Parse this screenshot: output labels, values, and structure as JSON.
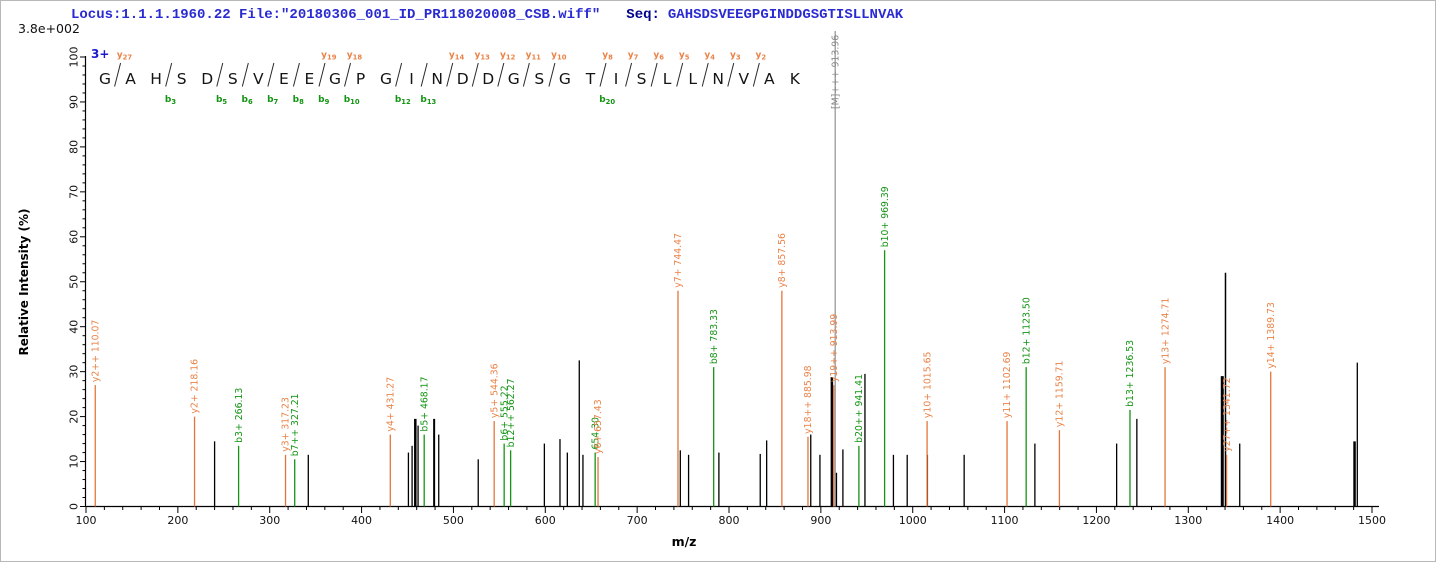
{
  "header": {
    "locus_file": "Locus:1.1.1.1960.22 File:\"20180306_001_ID_PR118020008_CSB.wiff\"",
    "seq_label": "Seq:",
    "sequence": "GAHSDSVEEGPGINDDGSGTISLLNVAK"
  },
  "scale_label": "3.8e+002",
  "colors": {
    "y_ion": "#E2763A",
    "y_ion_text": "#EA8348",
    "b_ion": "#149414",
    "unassigned": "#000000",
    "precursor_line": "#8F8F8F",
    "precursor_text": "#8A8A8A",
    "header_blue": "#2A2AD2",
    "seq_navy": "#00008B",
    "charge_blue": "#1C1CCD",
    "axis": "#000000"
  },
  "precursor": {
    "charge": "3+",
    "label": "[M]+++ 913.96",
    "mz": 913.96
  },
  "sequence_annotation": {
    "residues": [
      "G",
      "A",
      "H",
      "S",
      "D",
      "S",
      "V",
      "E",
      "E",
      "G",
      "P",
      "G",
      "I",
      "N",
      "D",
      "D",
      "G",
      "S",
      "G",
      "T",
      "I",
      "S",
      "L",
      "L",
      "N",
      "V",
      "A",
      "K"
    ],
    "y_ions": [
      {
        "num": 27,
        "gap": 0
      },
      {
        "num": 19,
        "gap": 8
      },
      {
        "num": 18,
        "gap": 9
      },
      {
        "num": 14,
        "gap": 13
      },
      {
        "num": 13,
        "gap": 14
      },
      {
        "num": 12,
        "gap": 15
      },
      {
        "num": 11,
        "gap": 16
      },
      {
        "num": 10,
        "gap": 17
      },
      {
        "num": 8,
        "gap": 19
      },
      {
        "num": 7,
        "gap": 20
      },
      {
        "num": 6,
        "gap": 21
      },
      {
        "num": 5,
        "gap": 22
      },
      {
        "num": 4,
        "gap": 23
      },
      {
        "num": 3,
        "gap": 24
      },
      {
        "num": 2,
        "gap": 25
      }
    ],
    "b_ions": [
      {
        "num": 3,
        "gap": 2
      },
      {
        "num": 5,
        "gap": 4
      },
      {
        "num": 6,
        "gap": 5
      },
      {
        "num": 7,
        "gap": 6
      },
      {
        "num": 8,
        "gap": 7
      },
      {
        "num": 9,
        "gap": 8
      },
      {
        "num": 10,
        "gap": 9
      },
      {
        "num": 12,
        "gap": 11
      },
      {
        "num": 13,
        "gap": 12
      },
      {
        "num": 20,
        "gap": 19
      }
    ]
  },
  "chart_data": {
    "type": "bar",
    "subtype": "ms2-fragment-spectrum",
    "title": "",
    "xlabel": "m/z",
    "ylabel": "Relative  Intensity (%)",
    "xlim": [
      100,
      1500
    ],
    "ylim": [
      0,
      100
    ],
    "x_major_tick": 100,
    "x_minor_tick": 20,
    "y_major_tick": 10,
    "y_minor_tick": 2,
    "intensity_scale_label": "3.8e+002",
    "series": [
      {
        "name": "y-ions",
        "color": "#E2763A",
        "points": [
          {
            "label": "y2++ 110.07",
            "mz": 110.07,
            "intensity": 27
          },
          {
            "label": "y2+ 218.16",
            "mz": 218.16,
            "intensity": 20
          },
          {
            "label": "y3+ 317.23",
            "mz": 317.23,
            "intensity": 11.5
          },
          {
            "label": "y4+ 431.27",
            "mz": 431.27,
            "intensity": 16
          },
          {
            "label": "y5+ 544.36",
            "mz": 544.36,
            "intensity": 19
          },
          {
            "label": "y6+ 657.43",
            "mz": 657.43,
            "intensity": 11
          },
          {
            "label": "y7+ 744.47",
            "mz": 744.47,
            "intensity": 48
          },
          {
            "label": "y8+ 857.56",
            "mz": 857.56,
            "intensity": 48
          },
          {
            "label": "y18++ 885.98",
            "mz": 885.98,
            "intensity": 15.5
          },
          {
            "label": "y19++ 913.99",
            "mz": 913.99,
            "intensity": 27
          },
          {
            "label": "y10+ 1015.65",
            "mz": 1015.65,
            "intensity": 19
          },
          {
            "label": "y11+ 1102.69",
            "mz": 1102.69,
            "intensity": 19
          },
          {
            "label": "y12+ 1159.71",
            "mz": 1159.71,
            "intensity": 17
          },
          {
            "label": "y13+ 1274.71",
            "mz": 1274.71,
            "intensity": 31
          },
          {
            "label": "y27++ 1341.72",
            "mz": 1341.72,
            "intensity": 11.5
          },
          {
            "label": "y14+ 1389.73",
            "mz": 1389.73,
            "intensity": 30
          }
        ]
      },
      {
        "name": "b-ions",
        "color": "#149414",
        "points": [
          {
            "label": "b3+ 266.13",
            "mz": 266.13,
            "intensity": 13.5
          },
          {
            "label": "b7++ 327.21",
            "mz": 327.21,
            "intensity": 10.5
          },
          {
            "label": "b5+ 468.17",
            "mz": 468.17,
            "intensity": 16
          },
          {
            "label": "b6+ 555.22",
            "mz": 555.22,
            "intensity": 14
          },
          {
            "label": "b12++ 562.27",
            "mz": 562.27,
            "intensity": 12.5
          },
          {
            "label": "654.30",
            "mz": 654.3,
            "intensity": 12
          },
          {
            "label": "b8+ 783.33",
            "mz": 783.33,
            "intensity": 31
          },
          {
            "label": "b20++ 941.41",
            "mz": 941.41,
            "intensity": 13.5
          },
          {
            "label": "b10+ 969.39",
            "mz": 969.39,
            "intensity": 57
          },
          {
            "label": "b12+ 1123.50",
            "mz": 1123.5,
            "intensity": 31
          },
          {
            "label": "b13+ 1236.53",
            "mz": 1236.53,
            "intensity": 21.5
          }
        ]
      },
      {
        "name": "unassigned",
        "color": "#000000",
        "points": [
          {
            "mz": 240,
            "intensity": 14.5
          },
          {
            "mz": 342,
            "intensity": 11.5
          },
          {
            "mz": 451,
            "intensity": 12
          },
          {
            "mz": 455,
            "intensity": 13.5
          },
          {
            "mz": 458.5,
            "intensity": 19.5,
            "w": 2.5
          },
          {
            "mz": 461.5,
            "intensity": 18
          },
          {
            "mz": 479,
            "intensity": 19.5,
            "w": 2
          },
          {
            "mz": 484,
            "intensity": 16
          },
          {
            "mz": 527,
            "intensity": 10.5
          },
          {
            "mz": 599,
            "intensity": 14
          },
          {
            "mz": 616,
            "intensity": 15
          },
          {
            "mz": 624,
            "intensity": 12
          },
          {
            "mz": 637,
            "intensity": 32.5
          },
          {
            "mz": 641,
            "intensity": 11.5
          },
          {
            "mz": 747,
            "intensity": 12.5
          },
          {
            "mz": 756,
            "intensity": 11.5
          },
          {
            "mz": 789,
            "intensity": 12
          },
          {
            "mz": 834,
            "intensity": 11.7
          },
          {
            "mz": 841,
            "intensity": 14.7
          },
          {
            "mz": 889,
            "intensity": 16
          },
          {
            "mz": 899,
            "intensity": 11.5
          },
          {
            "mz": 912,
            "intensity": 28.8,
            "w": 2.5
          },
          {
            "mz": 917,
            "intensity": 7.5
          },
          {
            "mz": 924,
            "intensity": 12.7
          },
          {
            "mz": 948,
            "intensity": 29.5
          },
          {
            "mz": 979,
            "intensity": 11.5
          },
          {
            "mz": 994,
            "intensity": 11.5
          },
          {
            "mz": 1016,
            "intensity": 11.5
          },
          {
            "mz": 1056,
            "intensity": 11.5
          },
          {
            "mz": 1133,
            "intensity": 14
          },
          {
            "mz": 1222,
            "intensity": 14
          },
          {
            "mz": 1244,
            "intensity": 19.5
          },
          {
            "mz": 1337,
            "intensity": 29,
            "w": 3
          },
          {
            "mz": 1340.5,
            "intensity": 52,
            "w": 1.5
          },
          {
            "mz": 1356,
            "intensity": 14
          },
          {
            "mz": 1481,
            "intensity": 14.5,
            "w": 2.5
          },
          {
            "mz": 1484,
            "intensity": 32
          }
        ]
      }
    ],
    "annotations": [
      {
        "name": "precursor",
        "label": "[M]+++ 913.96",
        "mz": 913.96,
        "full_height": true,
        "color": "#8F8F8F"
      }
    ]
  }
}
